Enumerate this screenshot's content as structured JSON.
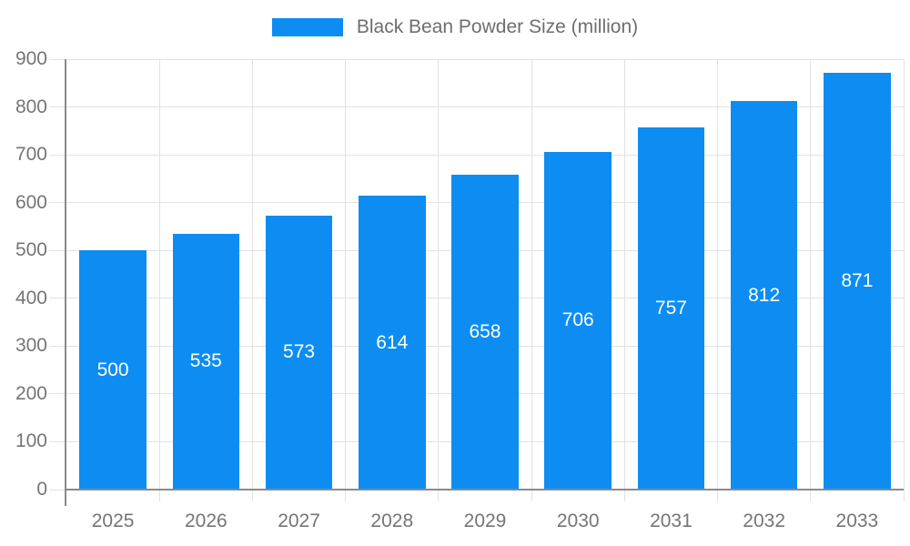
{
  "legend": {
    "label": "Black Bean Powder Size (million)"
  },
  "colors": {
    "bar": "#0d8df2",
    "grid": "#e2e2e2",
    "axis": "#8a8a8a",
    "tick_label": "#757575",
    "value_label": "#ffffff",
    "background": "#ffffff"
  },
  "chart_data": {
    "type": "bar",
    "title": "Black Bean Powder Size (million)",
    "series_name": "Black Bean Powder Size (million)",
    "categories": [
      "2025",
      "2026",
      "2027",
      "2028",
      "2029",
      "2030",
      "2031",
      "2032",
      "2033"
    ],
    "values": [
      500,
      535,
      573,
      614,
      658,
      706,
      757,
      812,
      871
    ],
    "xlabel": "",
    "ylabel": "",
    "ylim": [
      0,
      900
    ],
    "yticks": [
      0,
      100,
      200,
      300,
      400,
      500,
      600,
      700,
      800,
      900
    ],
    "grid": true,
    "legend_position": "top",
    "value_labels": "centered-inside-bars",
    "bar_width_fraction": 0.72
  }
}
